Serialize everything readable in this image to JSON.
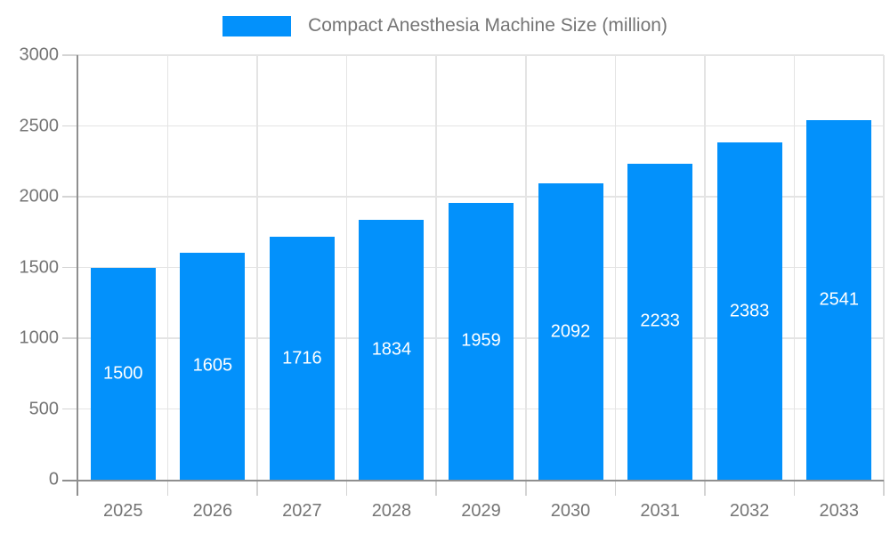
{
  "chart_data": {
    "type": "bar",
    "title": "Compact Anesthesia Machine Size (million)",
    "categories": [
      "2025",
      "2026",
      "2027",
      "2028",
      "2029",
      "2030",
      "2031",
      "2032",
      "2033"
    ],
    "values": [
      1500,
      1605,
      1716,
      1834,
      1959,
      2092,
      2233,
      2383,
      2541
    ],
    "series": [
      {
        "name": "Compact Anesthesia Machine Size (million)",
        "values": [
          1500,
          1605,
          1716,
          1834,
          1959,
          2092,
          2233,
          2383,
          2541
        ]
      }
    ],
    "xlabel": "",
    "ylabel": "",
    "ylim": [
      0,
      3000
    ],
    "yticks": [
      0,
      500,
      1000,
      1500,
      2000,
      2500,
      3000
    ],
    "grid": true,
    "legend_position": "top-center",
    "value_labels": "inside-center",
    "colors": {
      "bar": "#0391fb",
      "value_label": "#ffffff",
      "axis_text": "#757575",
      "gridline": "#e4e4e4",
      "tick": "#d4d4d4",
      "axis_line": "#8f8f8f",
      "background": "#ffffff"
    }
  }
}
